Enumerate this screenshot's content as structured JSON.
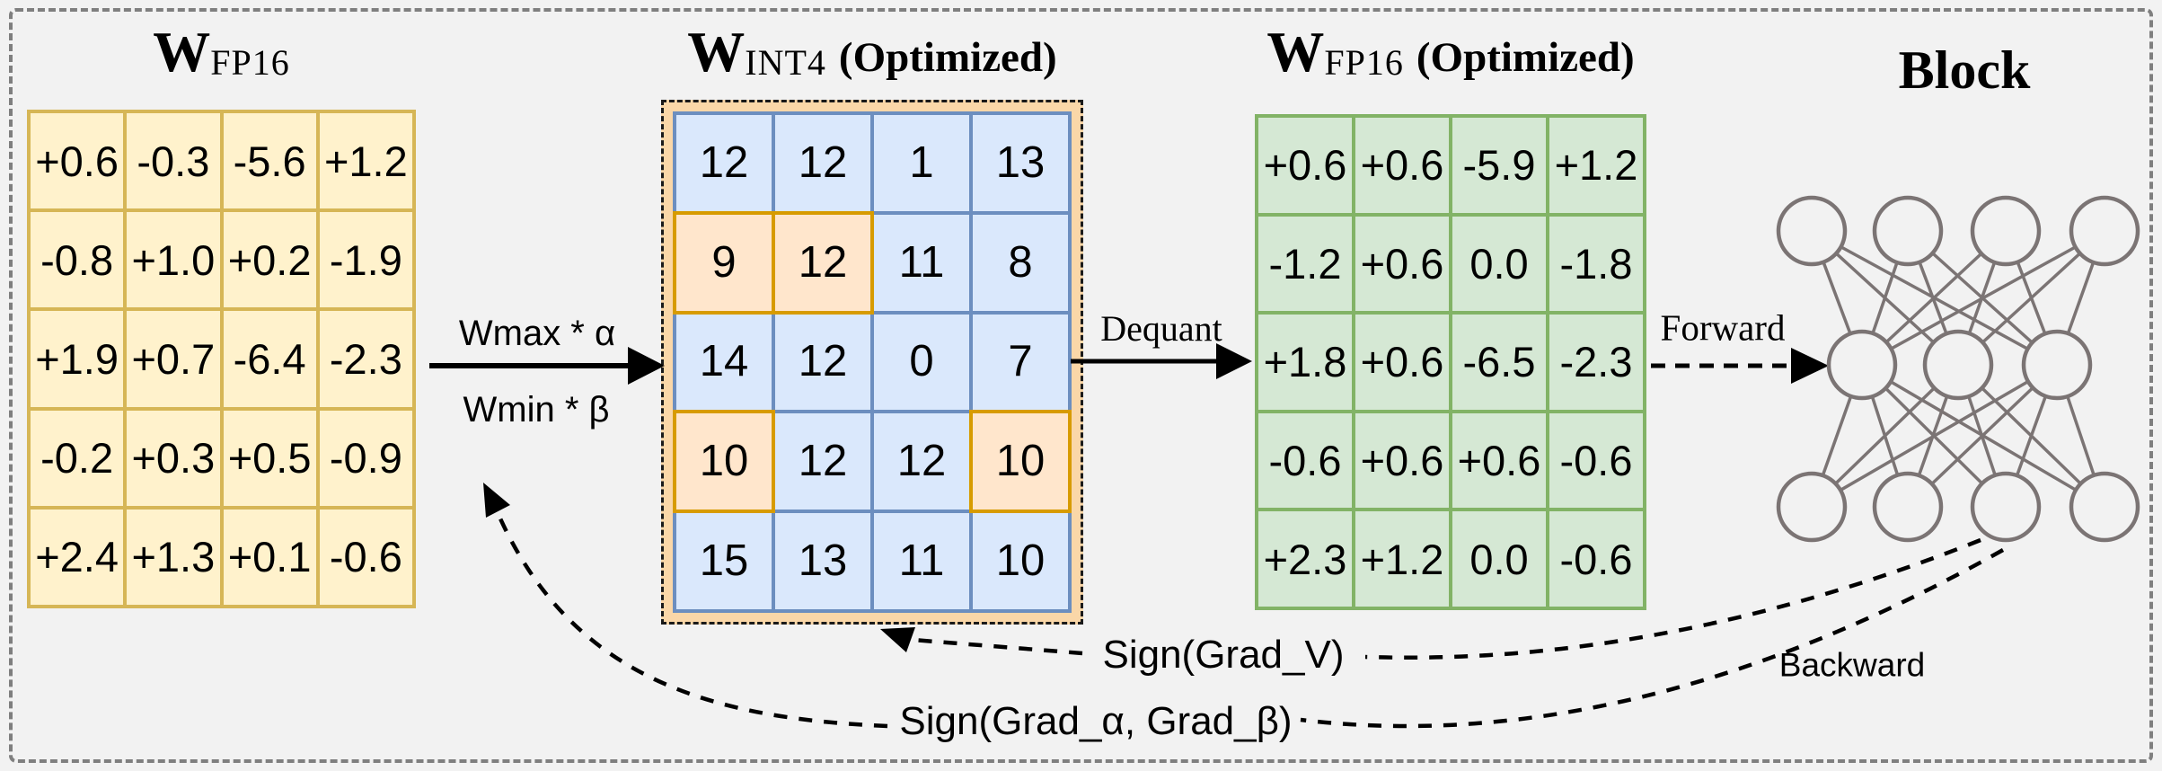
{
  "figure": {
    "matrices": {
      "fp16": {
        "title": {
          "main": "W",
          "sub": "FP16",
          "suffix": ""
        },
        "rows": [
          [
            "+0.6",
            "-0.3",
            "-5.6",
            "+1.2"
          ],
          [
            "-0.8",
            "+1.0",
            "+0.2",
            "-1.9"
          ],
          [
            "+1.9",
            "+0.7",
            "-6.4",
            "-2.3"
          ],
          [
            "-0.2",
            "+0.3",
            "+0.5",
            "-0.9"
          ],
          [
            "+2.4",
            "+1.3",
            "+0.1",
            "-0.6"
          ]
        ]
      },
      "int4": {
        "title": {
          "main": "W",
          "sub": "INT4",
          "suffix": "(Optimized)"
        },
        "rows": [
          [
            "12",
            "12",
            "1",
            "13"
          ],
          [
            "9",
            "12",
            "11",
            "8"
          ],
          [
            "14",
            "12",
            "0",
            "7"
          ],
          [
            "10",
            "12",
            "12",
            "10"
          ],
          [
            "15",
            "13",
            "11",
            "10"
          ]
        ],
        "highlighted_cells": [
          [
            1,
            0
          ],
          [
            1,
            1
          ],
          [
            3,
            0
          ],
          [
            3,
            3
          ]
        ]
      },
      "fp16_opt": {
        "title": {
          "main": "W",
          "sub": "FP16",
          "suffix": "(Optimized)"
        },
        "rows": [
          [
            "+0.6",
            "+0.6",
            "-5.9",
            "+1.2"
          ],
          [
            "-1.2",
            "+0.6",
            "0.0",
            "-1.8"
          ],
          [
            "+1.8",
            "+0.6",
            "-6.5",
            "-2.3"
          ],
          [
            "-0.6",
            "+0.6",
            "+0.6",
            "-0.6"
          ],
          [
            "+2.3",
            "+1.2",
            "0.0",
            "-0.6"
          ]
        ]
      }
    },
    "block": {
      "title": "Block",
      "layers": [
        4,
        3,
        4
      ]
    },
    "labels": {
      "quant_top": "Wmax * α",
      "quant_bottom": "Wmin * β",
      "dequant": "Dequant",
      "forward": "Forward",
      "backward": "Backward",
      "grad_v": "Sign(Grad_V)",
      "grad_ab": "Sign(Grad_α, Grad_β)"
    },
    "colors": {
      "background": "#F2F2F2",
      "yellow_fill": "#FFF2CC",
      "yellow_border": "#D6B656",
      "blue_fill": "#DAE8FC",
      "blue_border": "#6C8EBF",
      "orange_fill": "#FFE6CC",
      "orange_border": "#D79B00",
      "peach_fill": "#FAD7A8",
      "green_fill": "#D5E8D4",
      "green_border": "#82B366",
      "network_stroke": "#7B7474"
    }
  }
}
